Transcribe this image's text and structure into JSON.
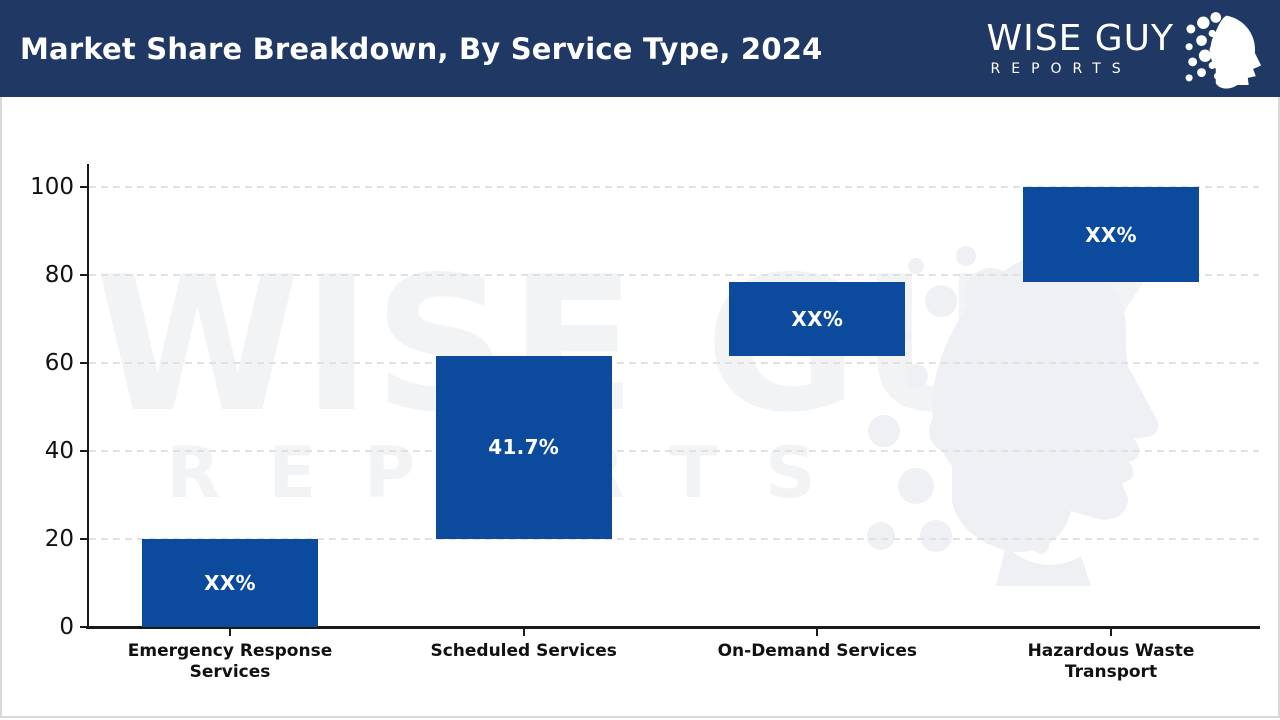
{
  "header": {
    "title": "Market Share Breakdown, By Service Type, 2024",
    "bg_color": "#1f3864"
  },
  "logo": {
    "wordmark": "WISE GUY",
    "subtext": "REPORTS"
  },
  "watermark": {
    "line1": "WISE GUY",
    "line2": "REPORTS"
  },
  "chart_data": {
    "type": "bar",
    "subtype": "waterfall-floating-bars",
    "title": "Market Share Breakdown, By Service Type, 2024",
    "categories": [
      "Emergency Response Services",
      "Scheduled Services",
      "On-Demand Services",
      "Hazardous Waste Transport"
    ],
    "series": [
      {
        "name": "Market Share",
        "starts": [
          0,
          20,
          61.7,
          78.3
        ],
        "ends": [
          20,
          61.7,
          78.3,
          100
        ]
      }
    ],
    "bar_labels": [
      "XX%",
      "41.7%",
      "XX%",
      "XX%"
    ],
    "xlabel": "",
    "ylabel": "",
    "ylim": [
      0,
      100
    ],
    "yticks": [
      0,
      20,
      40,
      60,
      80,
      100
    ],
    "grid": "dashed-horizontal",
    "legend": "none",
    "colors": {
      "bar": "#0c4a9e",
      "bar_label": "#ffffff",
      "gridline": "#e1e1e1",
      "axis": "#1a1a1a",
      "tick_label": "#111111"
    }
  }
}
